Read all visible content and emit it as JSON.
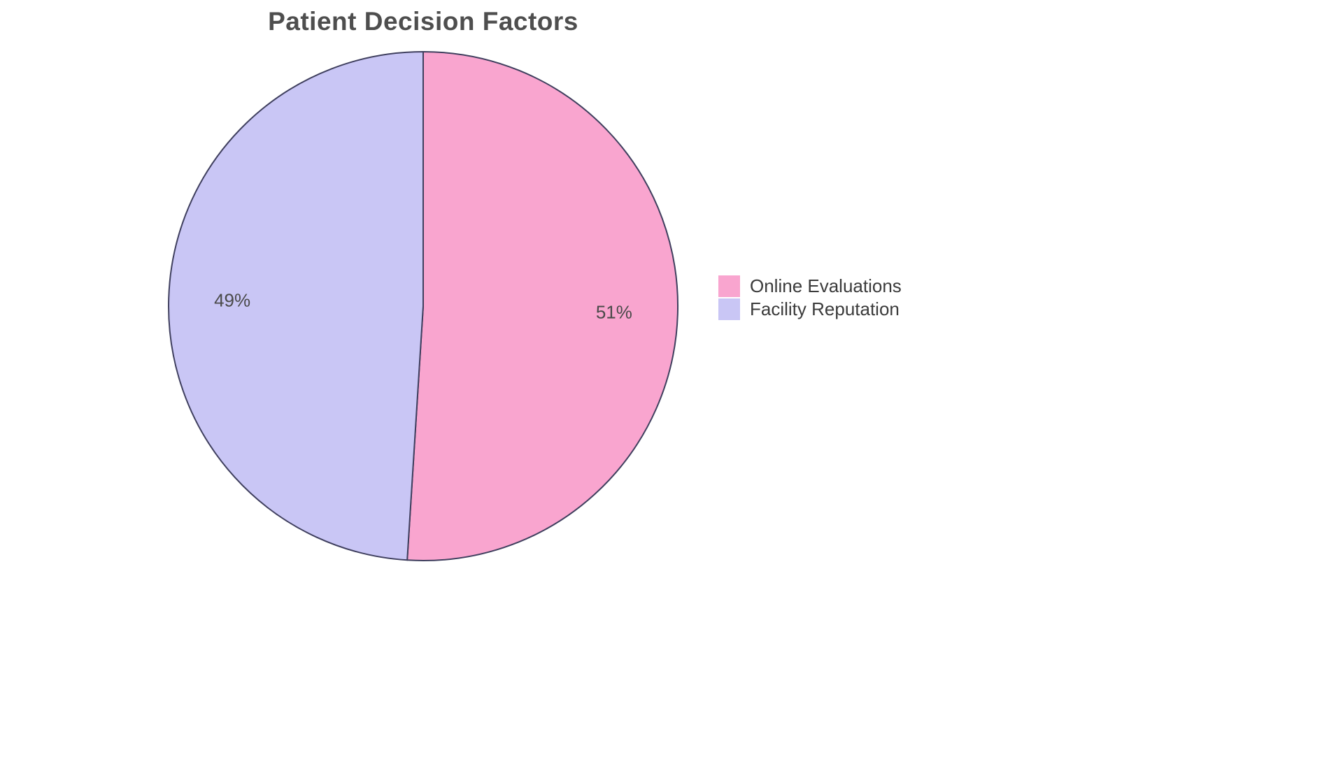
{
  "chart_data": {
    "type": "pie",
    "title": "Patient Decision Factors",
    "labels": [
      "Online Evaluations",
      "Facility Reputation"
    ],
    "values": [
      51,
      49
    ],
    "slice_labels": [
      "51%",
      "49%"
    ],
    "colors": [
      "#F9A5CF",
      "#C9C6F5"
    ],
    "stroke_color": "#3F3F5E",
    "legend_position": "right",
    "start_angle_deg": -90,
    "direction": "clockwise"
  }
}
